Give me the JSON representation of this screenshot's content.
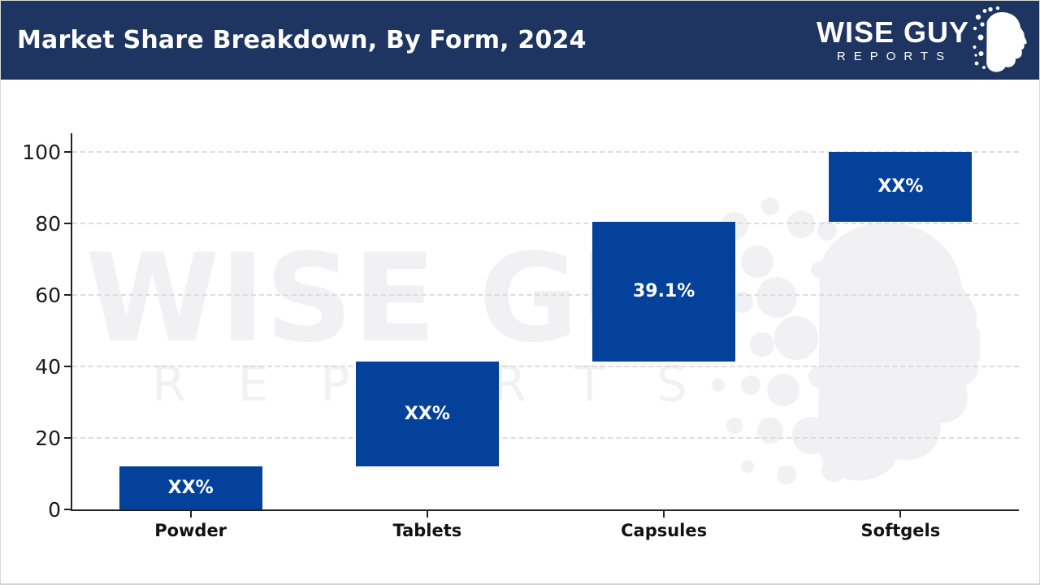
{
  "canvas": {
    "bg": "#ffffff",
    "border_color": "#d9d9d9"
  },
  "header": {
    "bg_color": "#1e3561",
    "title": "Market Share Breakdown, By Form, 2024",
    "brand": {
      "wordmark": "WISE GUY",
      "subtitle": "REPORTS"
    }
  },
  "watermark": {
    "wordmark": "WISE GU",
    "subtitle": "REPORTS"
  },
  "chart_data": {
    "type": "bar",
    "subtype": "waterfall-floating-bars",
    "title": "Market Share Breakdown, By Form, 2024",
    "categories": [
      "Powder",
      "Tablets",
      "Capsules",
      "Softgels"
    ],
    "bars": [
      {
        "category": "Powder",
        "start": 0,
        "end": 12.0,
        "height": 12.0,
        "label": "XX%"
      },
      {
        "category": "Tablets",
        "start": 12.0,
        "end": 41.4,
        "height": 29.4,
        "label": "XX%"
      },
      {
        "category": "Capsules",
        "start": 41.4,
        "end": 80.5,
        "height": 39.1,
        "label": "39.1%"
      },
      {
        "category": "Softgels",
        "start": 80.5,
        "end": 100.0,
        "height": 19.5,
        "label": "XX%"
      }
    ],
    "xlabel": "",
    "ylabel": "",
    "yticks": [
      0,
      20,
      40,
      60,
      80,
      100
    ],
    "ylim": [
      0,
      105
    ],
    "grid": true,
    "grid_style": "dashed",
    "legend_position": "none",
    "bar_color": "#04419b",
    "bar_label_color": "#ffffff",
    "axis_color": "#222222",
    "grid_color": "#dcdcdc"
  }
}
